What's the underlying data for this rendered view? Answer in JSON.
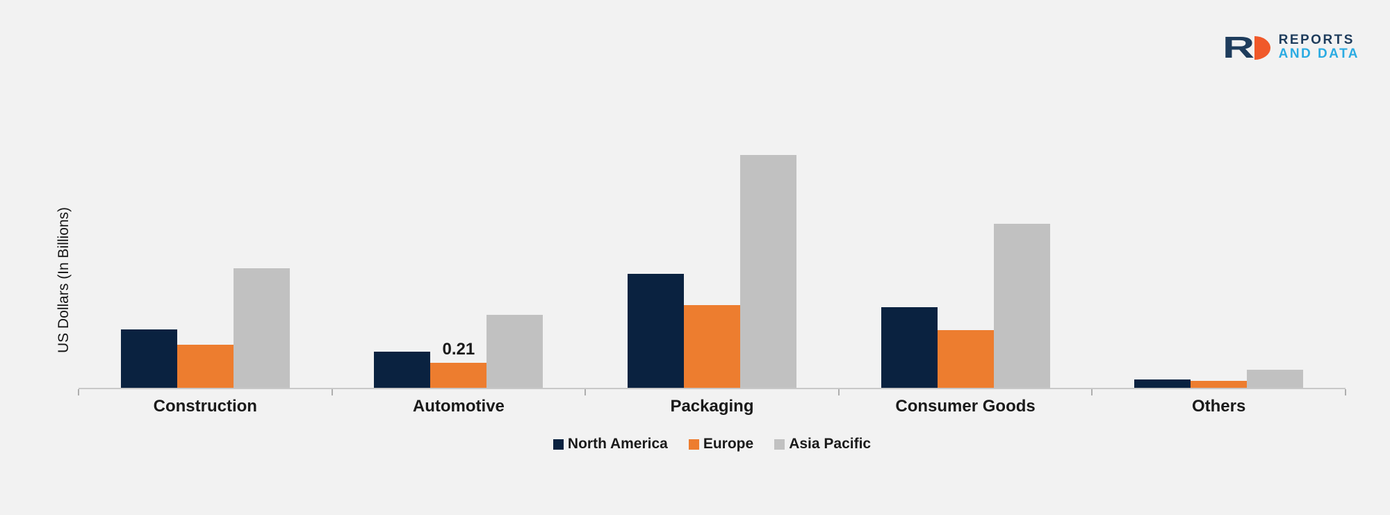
{
  "background_color": "#f2f2f2",
  "logo": {
    "mark_r": "R",
    "line1": "REPORTS",
    "line2": "AND DATA",
    "navy": "#1e3c5c",
    "orange": "#f0592a",
    "blue": "#2aabe2"
  },
  "chart_data": {
    "type": "bar",
    "title": "",
    "xlabel": "",
    "ylabel": "US Dollars (In Billions)",
    "categories": [
      "Construction",
      "Automotive",
      "Packaging",
      "Consumer Goods",
      "Others"
    ],
    "series": [
      {
        "name": "North America",
        "color": "#0a2240",
        "values": [
          0.49,
          0.3,
          0.95,
          0.67,
          0.07
        ]
      },
      {
        "name": "Europe",
        "color": "#ed7d2f",
        "values": [
          0.36,
          0.21,
          0.69,
          0.48,
          0.06
        ]
      },
      {
        "name": "Asia Pacific",
        "color": "#c1c1c1",
        "values": [
          1.0,
          0.61,
          1.94,
          1.37,
          0.15
        ]
      }
    ],
    "data_labels": [
      {
        "category": "Automotive",
        "series": "Europe",
        "text": "0.21"
      }
    ],
    "ylim": [
      0,
      2.0
    ],
    "grid": false,
    "y_tick_labels_visible": false,
    "axis_line_color": "#c8c8c8",
    "tick_color": "#aeaeae",
    "legend_position": "bottom"
  }
}
